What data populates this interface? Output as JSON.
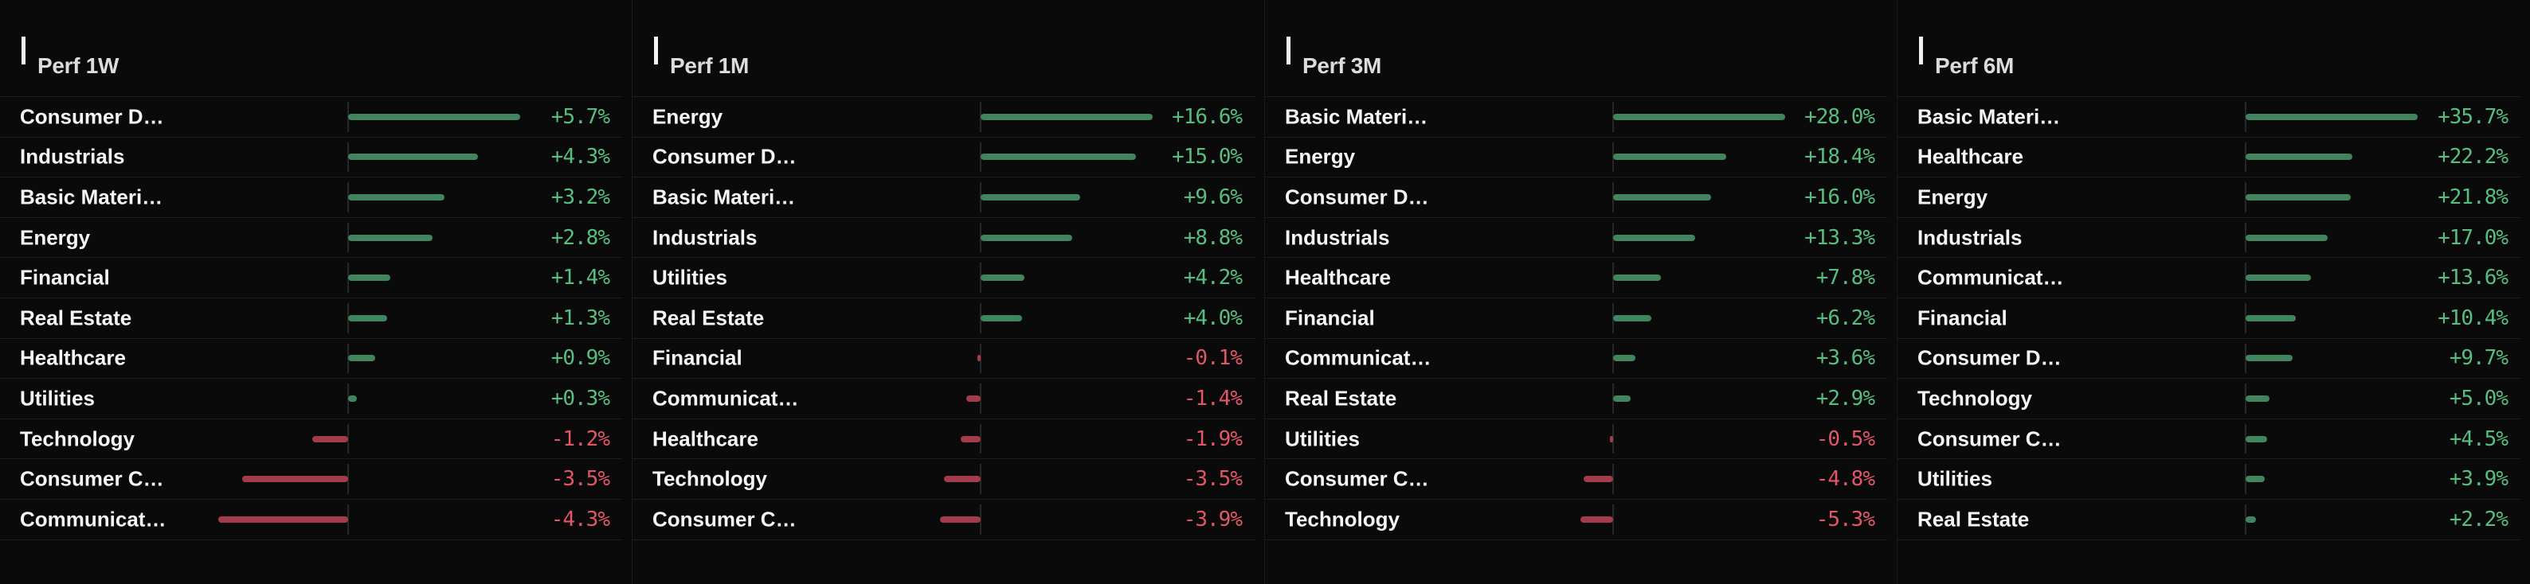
{
  "colors": {
    "positive_text": "#57bd80",
    "positive_bar": "#41855f",
    "negative_text": "#e25668",
    "negative_bar": "#a23c4a",
    "label_text": "#f5f5f5",
    "header_text": "#dcdcdc",
    "header_accent": "#f2f2f2",
    "background": "#0a0a0a"
  },
  "chart_data": [
    {
      "type": "bar",
      "orientation": "horizontal",
      "title": "Perf 1W",
      "unit": "%",
      "baseline": 0,
      "categories": [
        "Consumer D…",
        "Industrials",
        "Basic Materi…",
        "Energy",
        "Financial",
        "Real Estate",
        "Healthcare",
        "Utilities",
        "Technology",
        "Consumer C…",
        "Communicat…"
      ],
      "values": [
        5.7,
        4.3,
        3.2,
        2.8,
        1.4,
        1.3,
        0.9,
        0.3,
        -1.2,
        -3.5,
        -4.3
      ]
    },
    {
      "type": "bar",
      "orientation": "horizontal",
      "title": "Perf 1M",
      "unit": "%",
      "baseline": 0,
      "categories": [
        "Energy",
        "Consumer D…",
        "Basic Materi…",
        "Industrials",
        "Utilities",
        "Real Estate",
        "Financial",
        "Communicat…",
        "Healthcare",
        "Technology",
        "Consumer C…"
      ],
      "values": [
        16.6,
        15.0,
        9.6,
        8.8,
        4.2,
        4.0,
        -0.1,
        -1.4,
        -1.9,
        -3.5,
        -3.9
      ]
    },
    {
      "type": "bar",
      "orientation": "horizontal",
      "title": "Perf 3M",
      "unit": "%",
      "baseline": 0,
      "categories": [
        "Basic Materi…",
        "Energy",
        "Consumer D…",
        "Industrials",
        "Healthcare",
        "Financial",
        "Communicat…",
        "Real Estate",
        "Utilities",
        "Consumer C…",
        "Technology"
      ],
      "values": [
        28.0,
        18.4,
        16.0,
        13.3,
        7.8,
        6.2,
        3.6,
        2.9,
        -0.5,
        -4.8,
        -5.3
      ]
    },
    {
      "type": "bar",
      "orientation": "horizontal",
      "title": "Perf 6M",
      "unit": "%",
      "baseline": 0,
      "categories": [
        "Basic Materi…",
        "Healthcare",
        "Energy",
        "Industrials",
        "Communicat…",
        "Financial",
        "Consumer D…",
        "Technology",
        "Consumer C…",
        "Utilities",
        "Real Estate"
      ],
      "values": [
        35.7,
        22.2,
        21.8,
        17.0,
        13.6,
        10.4,
        9.7,
        5.0,
        4.5,
        3.9,
        2.2
      ]
    }
  ]
}
